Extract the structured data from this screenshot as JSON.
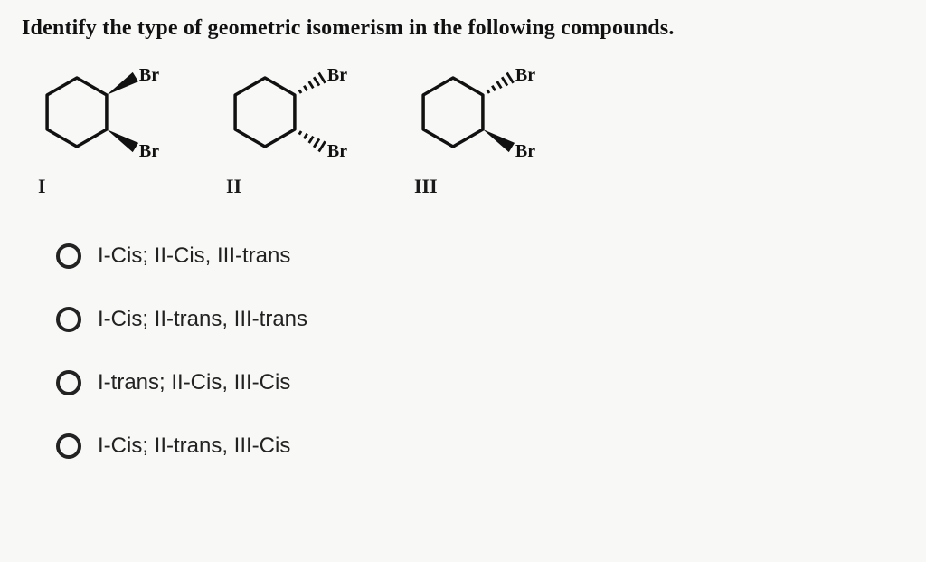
{
  "question": "Identify the type of geometric isomerism in the following compounds.",
  "compounds": [
    {
      "numeral": "I",
      "sub": "Br",
      "top_br": {
        "wedge": "solid",
        "dir": "up"
      },
      "bot_br": {
        "wedge": "solid",
        "dir": "down"
      }
    },
    {
      "numeral": "II",
      "sub": "Br",
      "top_br": {
        "wedge": "hash",
        "dir": "up"
      },
      "bot_br": {
        "wedge": "hash",
        "dir": "down"
      }
    },
    {
      "numeral": "III",
      "sub": "Br",
      "top_br": {
        "wedge": "hash",
        "dir": "up"
      },
      "bot_br": {
        "wedge": "solid",
        "dir": "down"
      }
    }
  ],
  "options": [
    "I-Cis; II-Cis, III-trans",
    "I-Cis; II-trans, III-trans",
    "I-trans; II-Cis, III-Cis",
    "I-Cis; II-trans, III-Cis"
  ],
  "style": {
    "stroke": "#111111",
    "stroke_width": 3.5,
    "label_font": "bold 18px Georgia, serif",
    "br_color": "#111111",
    "bg": "#f8f8f7"
  }
}
